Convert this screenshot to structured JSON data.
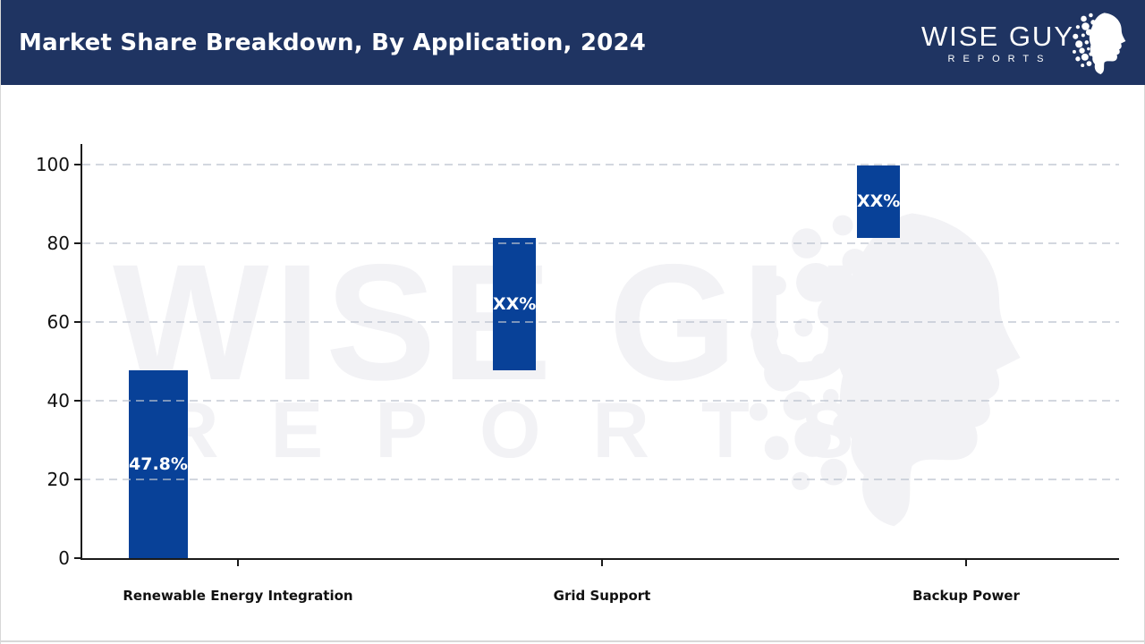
{
  "header": {
    "title": "Market Share Breakdown, By Application, 2024",
    "bg_color": "#1f3462",
    "logo": {
      "line1": "WISE GUY",
      "line2": "REPORTS"
    }
  },
  "watermark": {
    "line1": "WISE GUY",
    "line2": "REPORTS"
  },
  "chart_data": {
    "type": "bar",
    "subtype": "floating-segment-waterfall",
    "title": "Market Share Breakdown, By Application, 2024",
    "categories": [
      "Renewable Energy Integration",
      "Grid Support",
      "Backup Power"
    ],
    "segments": [
      {
        "category": "Renewable Energy Integration",
        "from": 0,
        "to": 47.8,
        "label": "47.8%"
      },
      {
        "category": "Grid Support",
        "from": 47.8,
        "to": 81.4,
        "label": "XX%"
      },
      {
        "category": "Backup Power",
        "from": 81.4,
        "to": 99.8,
        "label": "XX%"
      }
    ],
    "ylim": [
      0,
      100
    ],
    "yticks": [
      0,
      20,
      40,
      60,
      80,
      100
    ],
    "xlabel": "",
    "ylabel": "",
    "grid": "dashed-horizontal",
    "legend": "none",
    "bar_color": "#084198",
    "bar_label_color": "#ffffff",
    "axis_color": "#1a1a1a"
  },
  "page": {
    "bg": "#ffffff",
    "border_color": "#d8d8d8"
  }
}
